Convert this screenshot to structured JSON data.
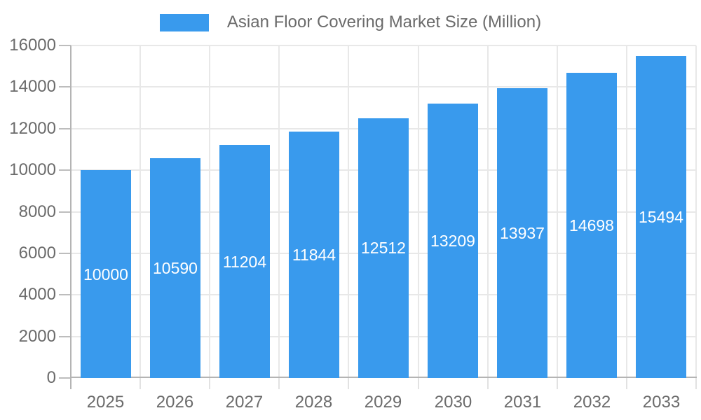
{
  "chart_data": {
    "type": "bar",
    "title": "Asian Floor Covering Market Size (Million)",
    "legend": {
      "label": "Asian Floor Covering Market Size (Million)",
      "position": "top-center"
    },
    "categories": [
      "2025",
      "2026",
      "2027",
      "2028",
      "2029",
      "2030",
      "2031",
      "2032",
      "2033"
    ],
    "series": [
      {
        "name": "Asian Floor Covering Market Size (Million)",
        "values": [
          10000,
          10590,
          11204,
          11844,
          12512,
          13209,
          13937,
          14698,
          15494
        ]
      }
    ],
    "bar_value_labels": [
      "10000",
      "10590",
      "11204",
      "11844",
      "12512",
      "13209",
      "13937",
      "14698",
      "15494"
    ],
    "xlabel": "",
    "ylabel": "",
    "ylim": [
      0,
      16000
    ],
    "ytick_step": 2000,
    "ytick_labels": [
      "0",
      "2000",
      "4000",
      "6000",
      "8000",
      "10000",
      "12000",
      "14000",
      "16000"
    ],
    "grid": true,
    "colors": {
      "bar": "#399AED",
      "bar_value_label": "#FFFFFF",
      "axis_text": "#6B6B6B",
      "gridline": "#E8E8E8",
      "axis_line": "#B4B4B4",
      "y_tick": "#BDBDBD",
      "x_tick": "#E2E2E2",
      "background": "#FFFFFF"
    }
  }
}
